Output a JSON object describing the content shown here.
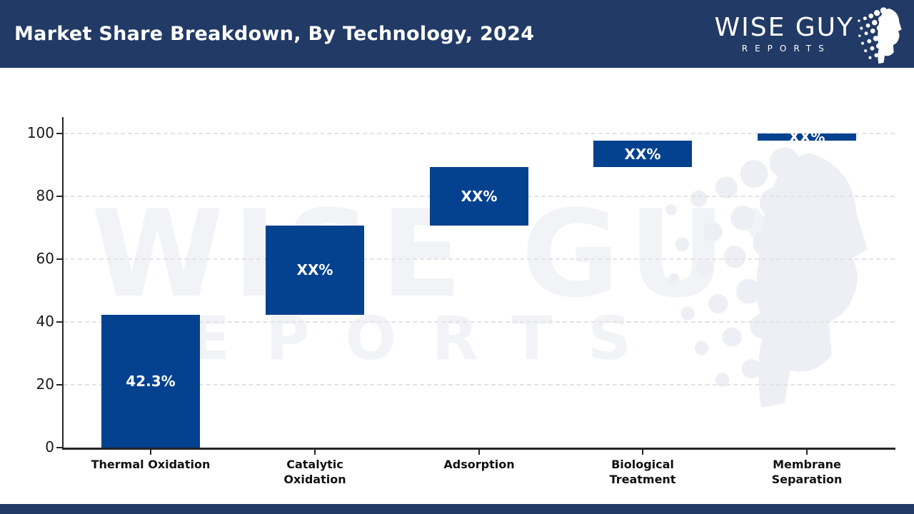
{
  "header": {
    "title": "Market Share Breakdown, By Technology, 2024",
    "logo_line1": "WISE GUY",
    "logo_line2": "REPORTS"
  },
  "watermark": {
    "line1": "WISE GUY",
    "line2": "REPORTS"
  },
  "colors": {
    "header_bg": "#213a66",
    "bar": "#04418f",
    "gridline": "#e3e3e6",
    "axis": "#262626",
    "watermark": "#f2f3f6"
  },
  "chart_data": {
    "type": "bar",
    "variant": "waterfall",
    "title": "Market Share Breakdown, By Technology, 2024",
    "categories": [
      "Thermal Oxidation",
      "Catalytic Oxidation",
      "Adsorption",
      "Biological Treatment",
      "Membrane Separation"
    ],
    "segments": [
      {
        "category": "Thermal Oxidation",
        "label_lines": [
          "Thermal Oxidation"
        ],
        "start": 0,
        "end": 42.3,
        "bar_label": "42.3%"
      },
      {
        "category": "Catalytic Oxidation",
        "label_lines": [
          "Catalytic",
          "Oxidation"
        ],
        "start": 42.3,
        "end": 70.7,
        "bar_label": "XX%"
      },
      {
        "category": "Adsorption",
        "label_lines": [
          "Adsorption"
        ],
        "start": 70.7,
        "end": 89.3,
        "bar_label": "XX%"
      },
      {
        "category": "Biological Treatment",
        "label_lines": [
          "Biological",
          "Treatment"
        ],
        "start": 89.3,
        "end": 97.7,
        "bar_label": "XX%"
      },
      {
        "category": "Membrane Separation",
        "label_lines": [
          "Membrane",
          "Separation"
        ],
        "start": 97.7,
        "end": 100,
        "bar_label": "XX%"
      }
    ],
    "ytick_values": [
      0,
      20,
      40,
      60,
      80,
      100
    ],
    "ytick_labels": [
      "0",
      "20",
      "40",
      "60",
      "80",
      "100"
    ],
    "ylim": [
      0,
      105
    ],
    "xlabel": "",
    "ylabel": "",
    "grid": "horizontal-dashed",
    "legend": "none"
  }
}
